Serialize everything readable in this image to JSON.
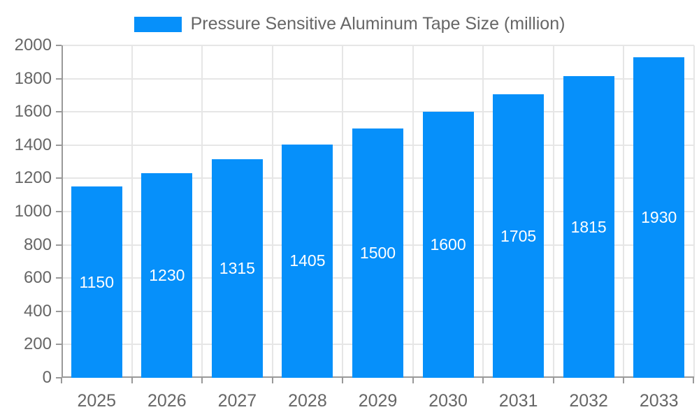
{
  "colors": {
    "bar": "#0690fa",
    "grid": "#e6e6e6",
    "axis": "#999999",
    "text": "#666666",
    "value_label": "#ffffff",
    "background": "#ffffff"
  },
  "chart_data": {
    "type": "bar",
    "title": "Pressure Sensitive Aluminum Tape Size (million)",
    "categories": [
      "2025",
      "2026",
      "2027",
      "2028",
      "2029",
      "2030",
      "2031",
      "2032",
      "2033"
    ],
    "values": [
      1150,
      1230,
      1315,
      1405,
      1500,
      1600,
      1705,
      1815,
      1930
    ],
    "yticks": [
      0,
      200,
      400,
      600,
      800,
      1000,
      1200,
      1400,
      1600,
      1800,
      2000
    ],
    "xlabel": "",
    "ylabel": "",
    "ylim": [
      0,
      2000
    ],
    "ytick_step": 200,
    "grid": true,
    "value_labels": "inside-center",
    "legend_position": "top-center"
  }
}
